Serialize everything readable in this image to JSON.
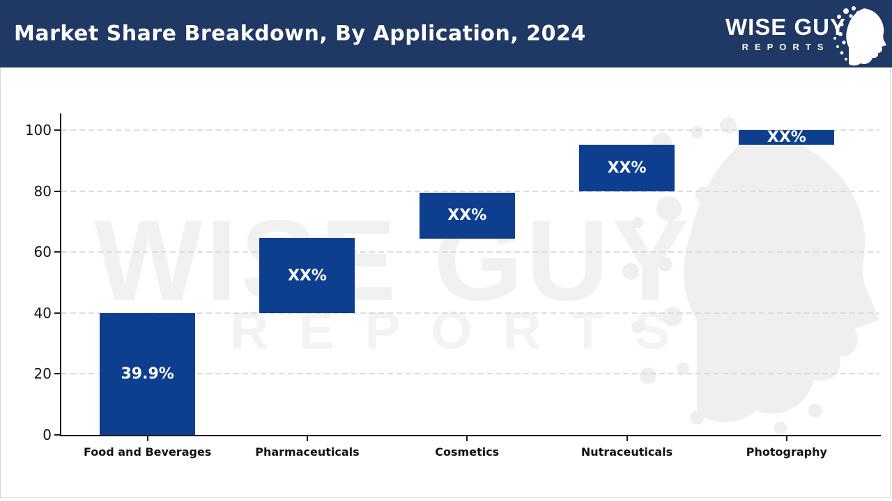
{
  "header": {
    "title": "Market Share Breakdown, By Application, 2024",
    "logo": {
      "line1": "WISE GUY",
      "line2": "REPORTS"
    }
  },
  "watermark": {
    "line1": "WISE GUY",
    "line2": "REPORTS"
  },
  "chart_data": {
    "type": "bar",
    "subtype": "waterfall-style floating market-share bars",
    "title": "Market Share Breakdown, By Application, 2024",
    "xlabel": "",
    "ylabel": "",
    "categories": [
      "Food and Beverages",
      "Pharmaceuticals",
      "Cosmetics",
      "Nutraceuticals",
      "Photography"
    ],
    "segments": [
      {
        "category": "Food and Beverages",
        "start": 0,
        "end": 39.9,
        "value": 39.9,
        "label": "39.9%"
      },
      {
        "category": "Pharmaceuticals",
        "start": 39.9,
        "end": 64.5,
        "value": 24.6,
        "label": "XX%"
      },
      {
        "category": "Cosmetics",
        "start": 64.4,
        "end": 79.5,
        "value": 15.1,
        "label": "XX%"
      },
      {
        "category": "Nutraceuticals",
        "start": 79.9,
        "end": 95.2,
        "value": 15.3,
        "label": "XX%"
      },
      {
        "category": "Photography",
        "start": 95.3,
        "end": 100,
        "value": 4.7,
        "label": "XX%"
      }
    ],
    "yticks": [
      0,
      20,
      40,
      60,
      80,
      100
    ],
    "ylim": [
      0,
      105
    ],
    "grid": "horizontal dashed gridlines at y ticks",
    "legend": "none",
    "note": "Values other than the first bar are masked as XX% in the source image; start/end estimated from gridlines",
    "colors": {
      "bar": "#0d3f8e",
      "bar_label": "#ffffff",
      "header_bg": "#1f3864",
      "header_text": "#ffffff",
      "grid": "#dcdcdc",
      "axis": "#1a1a1a",
      "watermark": "#f1f1f1"
    }
  }
}
